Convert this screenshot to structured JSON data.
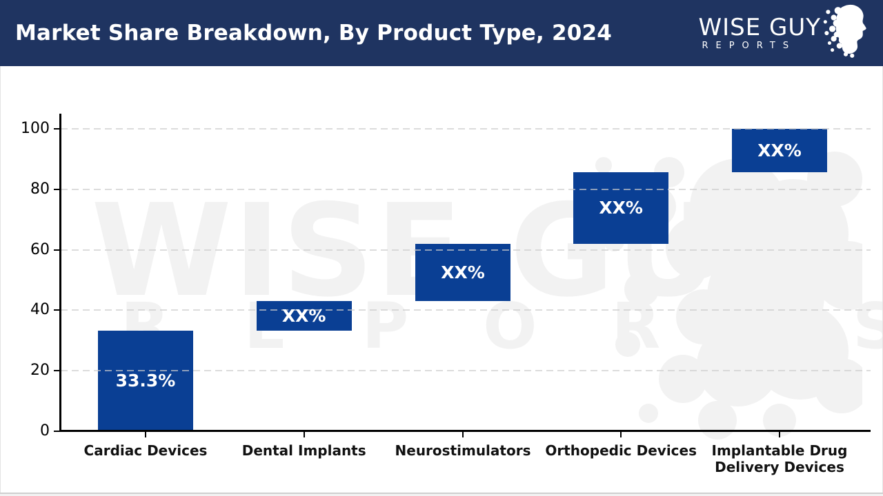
{
  "header": {
    "title": "Market Share Breakdown, By Product Type, 2024",
    "bg_color": "#1f3461",
    "logo": {
      "line1": "WISE GUY",
      "line2": "REPORTS"
    }
  },
  "watermark": {
    "line1": "WISE GUY",
    "line2": "R E P O R T S"
  },
  "chart_data": {
    "type": "bar",
    "subtype": "waterfall",
    "title": "Market Share Breakdown, By Product Type, 2024",
    "categories": [
      "Cardiac Devices",
      "Dental Implants",
      "Neurostimulators",
      "Orthopedic Devices",
      "Implantable Drug Delivery Devices"
    ],
    "segments": [
      {
        "category": "Cardiac Devices",
        "start": 0,
        "end": 33.3,
        "label": "33.3%"
      },
      {
        "category": "Dental Implants",
        "start": 33.3,
        "end": 43,
        "label": "XX%"
      },
      {
        "category": "Neurostimulators",
        "start": 43,
        "end": 62,
        "label": "XX%"
      },
      {
        "category": "Orthopedic Devices",
        "start": 62,
        "end": 85.7,
        "label": "XX%"
      },
      {
        "category": "Implantable Drug Delivery Devices",
        "start": 85.7,
        "end": 100,
        "label": "XX%"
      }
    ],
    "ylim": [
      0,
      100
    ],
    "yticks": [
      0,
      20,
      40,
      60,
      80,
      100
    ],
    "xlabel": "",
    "ylabel": "",
    "grid": "horizontal-dashed",
    "legend": "none",
    "bar_color": "#0a3f94",
    "bar_label_color": "#ffffff"
  }
}
